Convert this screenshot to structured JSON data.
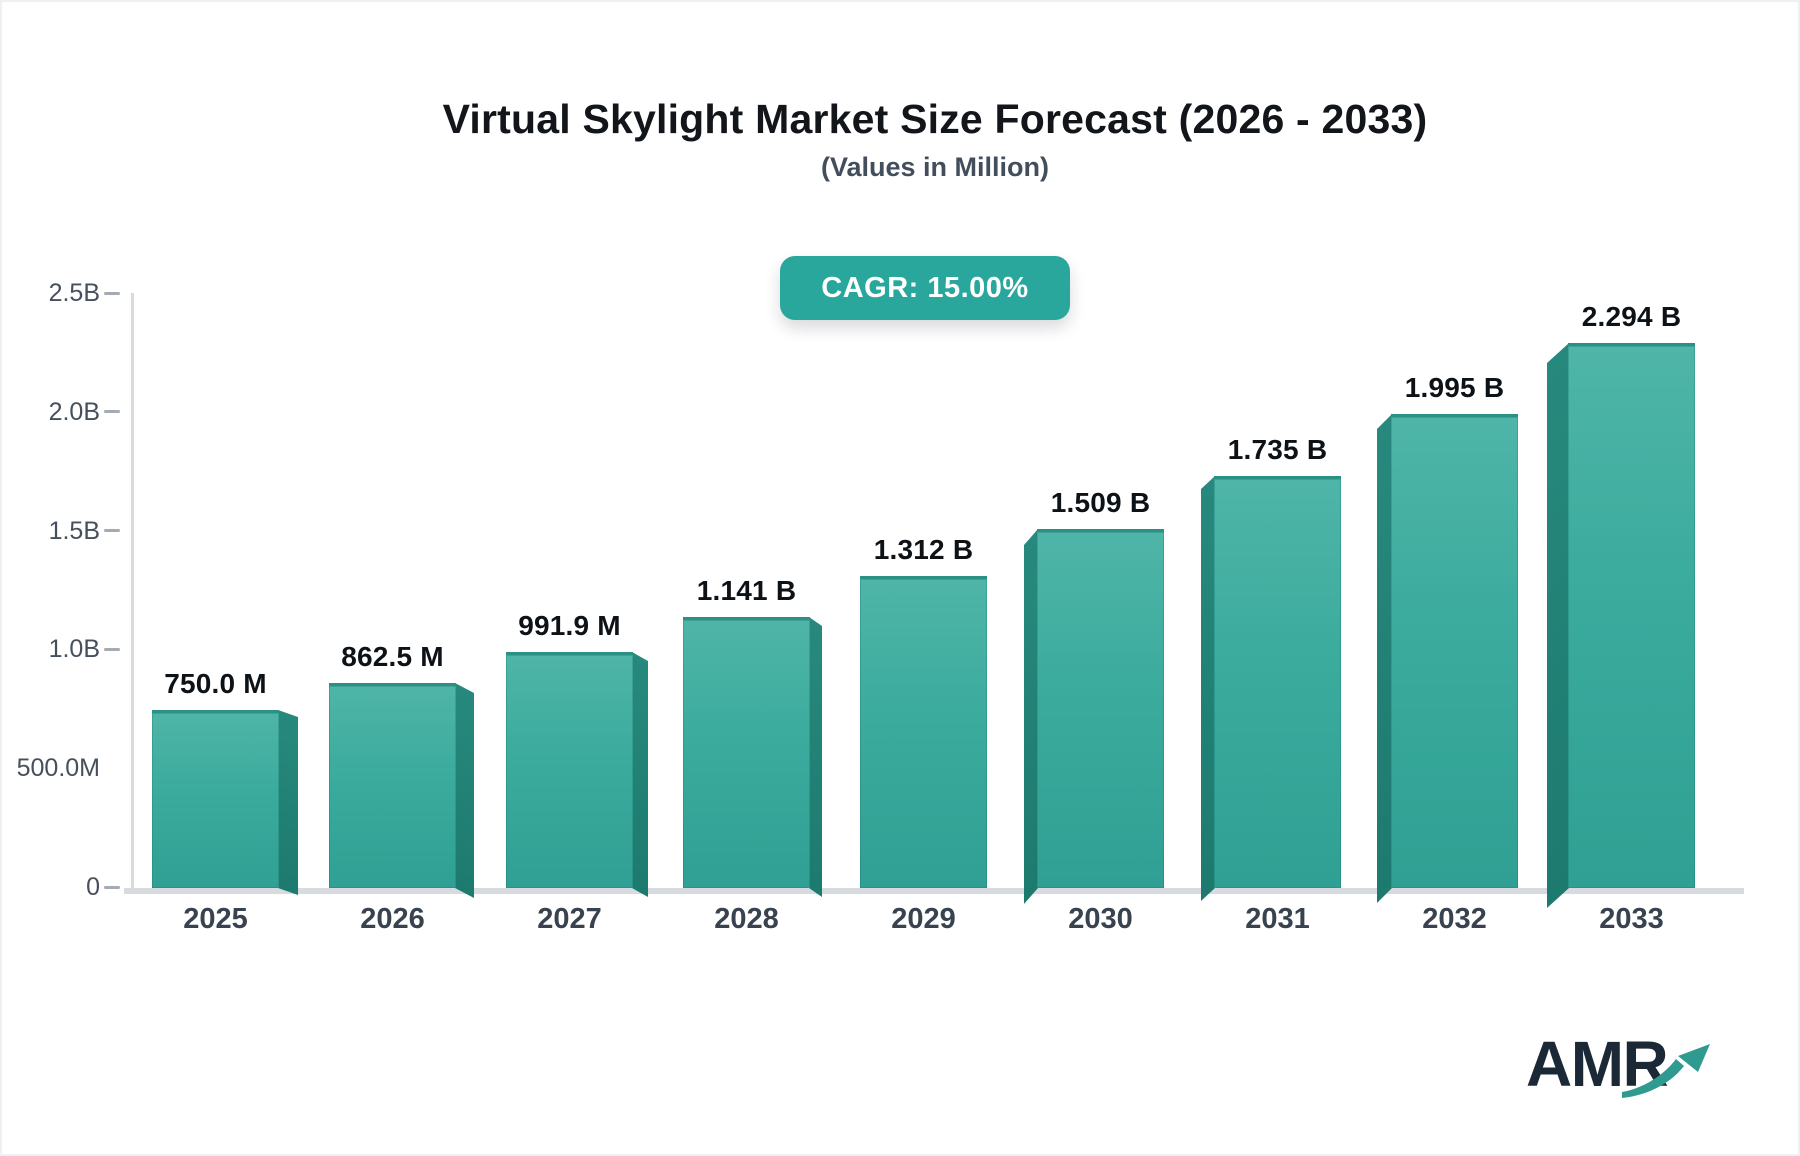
{
  "header": {
    "title": "Virtual Skylight Market Size Forecast (2026 - 2033)",
    "subtitle": "(Values in Million)",
    "cagr_badge": "CAGR: 15.00%"
  },
  "chart_data": {
    "type": "bar",
    "title": "Virtual Skylight Market Size Forecast (2026 - 2033)",
    "subtitle": "(Values in Million)",
    "cagr_label": "CAGR: 15.00%",
    "categories": [
      "2025",
      "2026",
      "2027",
      "2028",
      "2029",
      "2030",
      "2031",
      "2032",
      "2033"
    ],
    "values_in_millions": [
      750.0,
      862.5,
      991.9,
      1141,
      1312,
      1509,
      1735,
      1995,
      2294
    ],
    "bar_labels": [
      "750.0 M",
      "862.5 M",
      "991.9 M",
      "1.141 B",
      "1.312 B",
      "1.509 B",
      "1.735 B",
      "1.995 B",
      "2.294 B"
    ],
    "y_axis": {
      "max_millions": 2500,
      "ticks": [
        {
          "label": "2.5B",
          "value_millions": 2500,
          "dash": true
        },
        {
          "label": "2.0B",
          "value_millions": 2000,
          "dash": true
        },
        {
          "label": "1.5B",
          "value_millions": 1500,
          "dash": true
        },
        {
          "label": "1.0B",
          "value_millions": 1000,
          "dash": true
        },
        {
          "label": "500.0M",
          "value_millions": 500,
          "dash": false
        },
        {
          "label": "0",
          "value_millions": 0,
          "dash": true
        }
      ]
    },
    "grid": false,
    "legend": null,
    "colors": {
      "bar_front_top": "#4fb5a8",
      "bar_front_bottom": "#2fa093",
      "bar_side": "#1d7a6f",
      "bar_top_edge": "#2c9185",
      "badge_background": "#2aa79c",
      "axis_line": "#d7dbe0",
      "value_label_text": "#0d1217",
      "axis_label_text": "#46505c",
      "logo_arrow": "#2e9a90"
    }
  },
  "logo": {
    "text": "AMR"
  }
}
